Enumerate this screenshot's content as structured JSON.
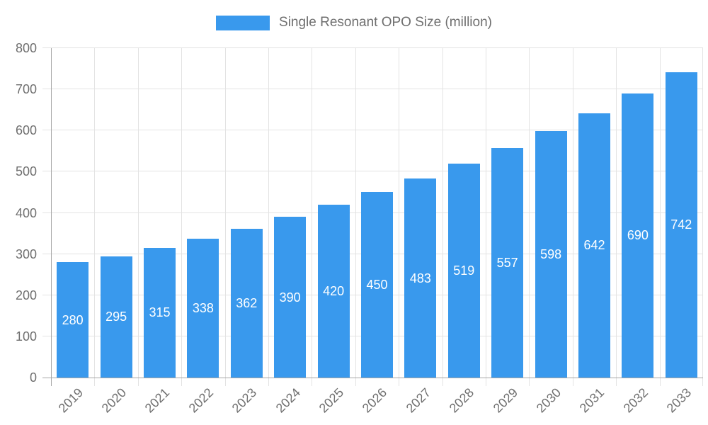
{
  "legend": {
    "label": "Single Resonant OPO Size (million)"
  },
  "chart_data": {
    "type": "bar",
    "title": "Single Resonant OPO Size (million)",
    "categories": [
      "2019",
      "2020",
      "2021",
      "2022",
      "2023",
      "2024",
      "2025",
      "2026",
      "2027",
      "2028",
      "2029",
      "2030",
      "2031",
      "2032",
      "2033"
    ],
    "values": [
      280,
      295,
      315,
      338,
      362,
      390,
      420,
      450,
      483,
      519,
      557,
      598,
      642,
      690,
      742
    ],
    "xlabel": "",
    "ylabel": "",
    "ylim": [
      0,
      800
    ],
    "ytick_step": 100,
    "ytick_labels": [
      "0",
      "100",
      "200",
      "300",
      "400",
      "500",
      "600",
      "700",
      "800"
    ],
    "grid": true,
    "legend_position": "top",
    "value_labels_inside_bars": true,
    "colors": {
      "bar": "#3999ED",
      "value_label": "#ffffff",
      "axis_text": "#6f6f6f",
      "grid": "#e3e3e3",
      "axis_line": "#a6a6a6",
      "background": "#ffffff"
    }
  }
}
